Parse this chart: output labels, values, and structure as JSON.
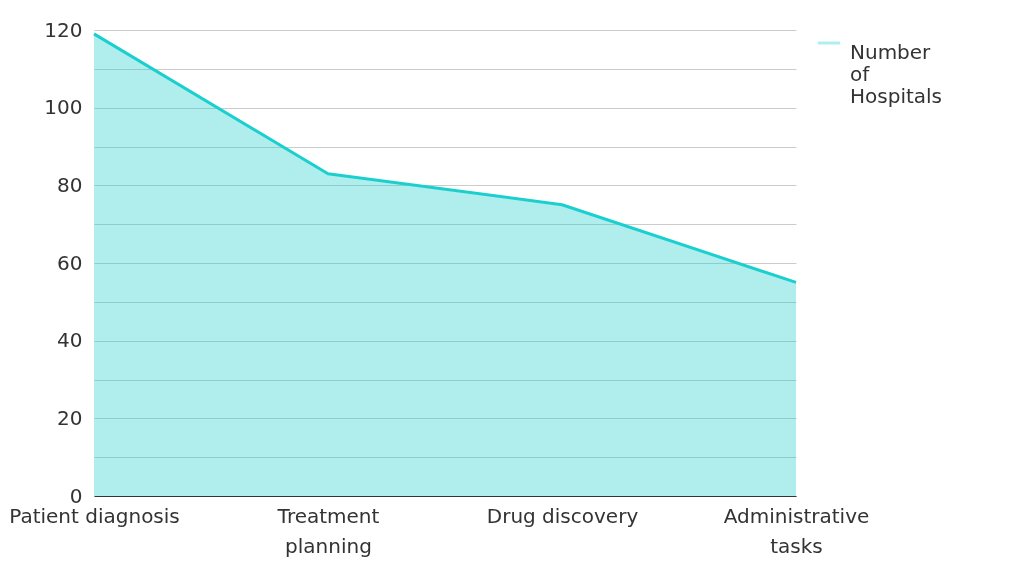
{
  "chart_data": {
    "type": "area",
    "categories": [
      "Patient diagnosis",
      "Treatment planning",
      "Drug discovery",
      "Administrative tasks"
    ],
    "series": [
      {
        "name": "Number of Hospitals",
        "color": "#1ccfcf",
        "values": [
          119,
          83,
          75,
          55
        ]
      }
    ],
    "ylim": [
      0,
      120
    ],
    "yticks": [
      0,
      {
        "value": 10,
        "label": null
      },
      20,
      {
        "value": 30,
        "label": null
      },
      40,
      {
        "value": 50,
        "label": null
      },
      60,
      {
        "value": 70,
        "label": null
      },
      80,
      {
        "value": 90,
        "label": null
      },
      100,
      {
        "value": 110,
        "label": null
      },
      120
    ],
    "grid": "y",
    "legend": "top right"
  }
}
